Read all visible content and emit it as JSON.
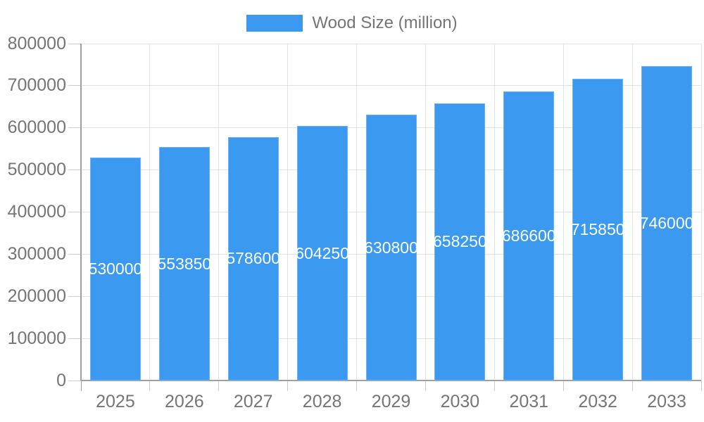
{
  "legend": {
    "label": "Wood Size (million)"
  },
  "chart_data": {
    "type": "bar",
    "title": "Wood Size (million)",
    "categories": [
      "2025",
      "2026",
      "2027",
      "2028",
      "2029",
      "2030",
      "2031",
      "2032",
      "2033"
    ],
    "series": [
      {
        "name": "Wood Size (million)",
        "values": [
          530000,
          553850,
          578600,
          604250,
          630800,
          658250,
          686600,
          715850,
          746000
        ]
      }
    ],
    "xlabel": "",
    "ylabel": "",
    "ylim": [
      0,
      800000
    ],
    "ytick_step": 100000,
    "ytick_labels": [
      "0",
      "100000",
      "200000",
      "300000",
      "400000",
      "500000",
      "600000",
      "700000",
      "800000"
    ],
    "grid": true,
    "legend_position": "top-center",
    "data_labels": "inside-center-white",
    "colors": {
      "bar": "#3B99F0",
      "data_label": "#FFFFFF",
      "axis_text": "#757575",
      "gridline": "#E3E3E3",
      "axis_line": "#A0A0A0",
      "tick": "#CCCCCC",
      "background": "#FFFFFF"
    }
  }
}
